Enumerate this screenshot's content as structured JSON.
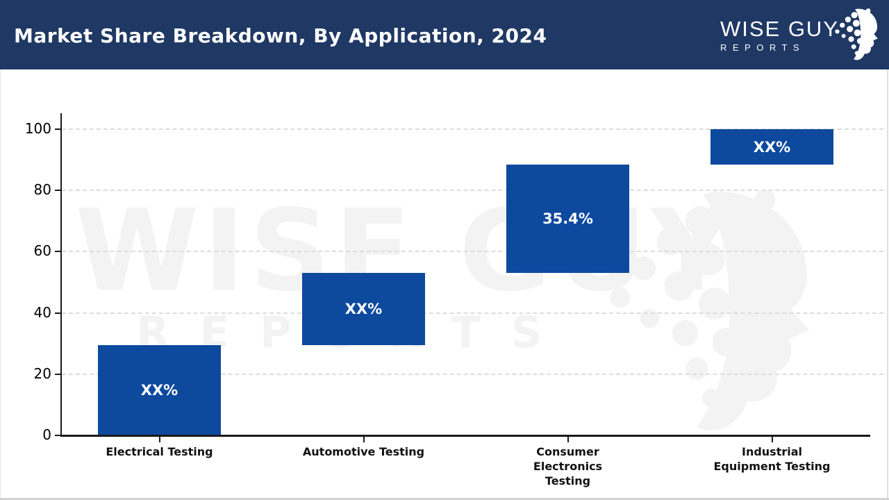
{
  "header": {
    "title": "Market Share Breakdown, By Application, 2024",
    "bg_color": "#1f3864",
    "logo": {
      "wordmark": "WISE GUY",
      "subtext": "REPORTS"
    }
  },
  "watermark": {
    "wordmark": "WISE GUY",
    "subtext": "REPORTS",
    "head_icon": "dotted-face-profile"
  },
  "chart_data": {
    "type": "bar",
    "variant": "waterfall",
    "title": "Market Share Breakdown, By Application, 2024",
    "categories": [
      "Electrical Testing",
      "Automotive Testing",
      "Consumer\nElectronics\nTesting",
      "Industrial\nEquipment Testing"
    ],
    "segments": [
      {
        "category": "Electrical Testing",
        "start": 0,
        "end": 29.5,
        "value_label": "XX%"
      },
      {
        "category": "Automotive Testing",
        "start": 29.5,
        "end": 53.0,
        "value_label": "XX%"
      },
      {
        "category": "Consumer Electronics Testing",
        "start": 53.0,
        "end": 88.4,
        "value_label": "35.4%"
      },
      {
        "category": "Industrial Equipment Testing",
        "start": 88.4,
        "end": 100,
        "value_label": "XX%"
      }
    ],
    "yticks": [
      0,
      20,
      40,
      60,
      80,
      100
    ],
    "ylim": [
      0,
      105
    ],
    "xlabel": "",
    "ylabel": "",
    "legend": null,
    "grid": {
      "horizontal": true,
      "style": "dashed",
      "color": "#dcdcdc"
    },
    "bar_color": "#0d4a9e",
    "bar_label_color": "#ffffff",
    "axis_color": "#1a1a1a"
  }
}
